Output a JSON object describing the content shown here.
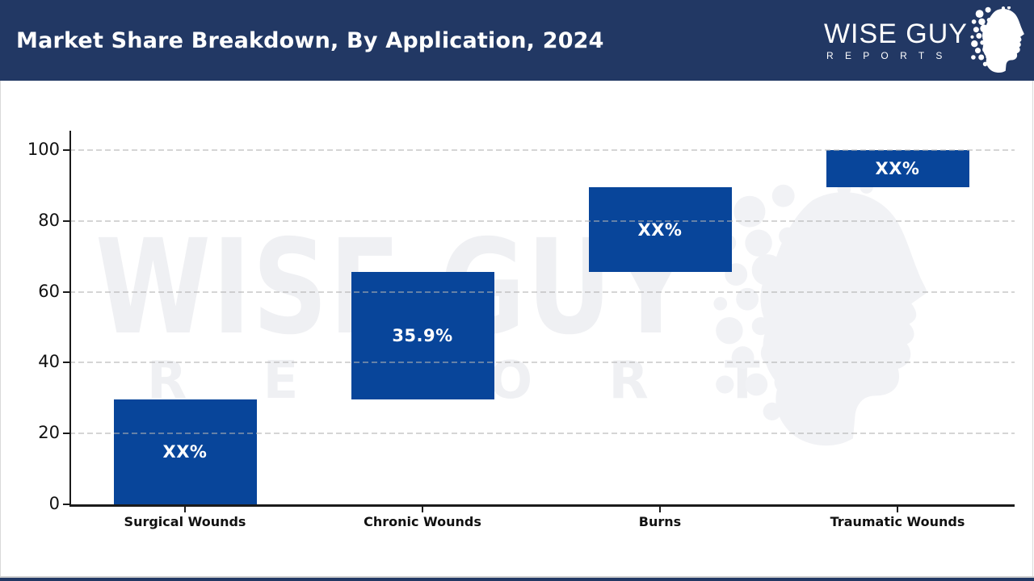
{
  "header": {
    "title": "Market Share Breakdown, By Application, 2024",
    "logo": {
      "name": "WISE GUY",
      "sub": "R E P O R T S"
    }
  },
  "watermark": {
    "name": "WISE GUY",
    "sub": "R E P O R T S"
  },
  "colors": {
    "header_bg": "#223864",
    "footer_bar": "#223864",
    "bar": "#08459a",
    "axis": "#1b1b1b"
  },
  "chart_data": {
    "type": "bar",
    "variant": "waterfall-breakdown",
    "title": "Market Share Breakdown, By Application, 2024",
    "categories": [
      "Surgical Wounds",
      "Chronic Wounds",
      "Burns",
      "Traumatic Wounds"
    ],
    "segments": [
      [
        0,
        29.7
      ],
      [
        29.7,
        65.6
      ],
      [
        65.6,
        89.5
      ],
      [
        89.5,
        100
      ]
    ],
    "values": [
      29.7,
      35.9,
      23.9,
      10.5
    ],
    "bar_labels": [
      "XX%",
      "35.9%",
      "XX%",
      "XX%"
    ],
    "unit": "%",
    "yticks": [
      0,
      20,
      40,
      60,
      80,
      100
    ],
    "ylim": [
      0,
      105.5
    ],
    "grid": "horizontal-dashed-over-bars",
    "legend": "none",
    "bar_color": "#08459a",
    "label_color": "#ffffff"
  }
}
